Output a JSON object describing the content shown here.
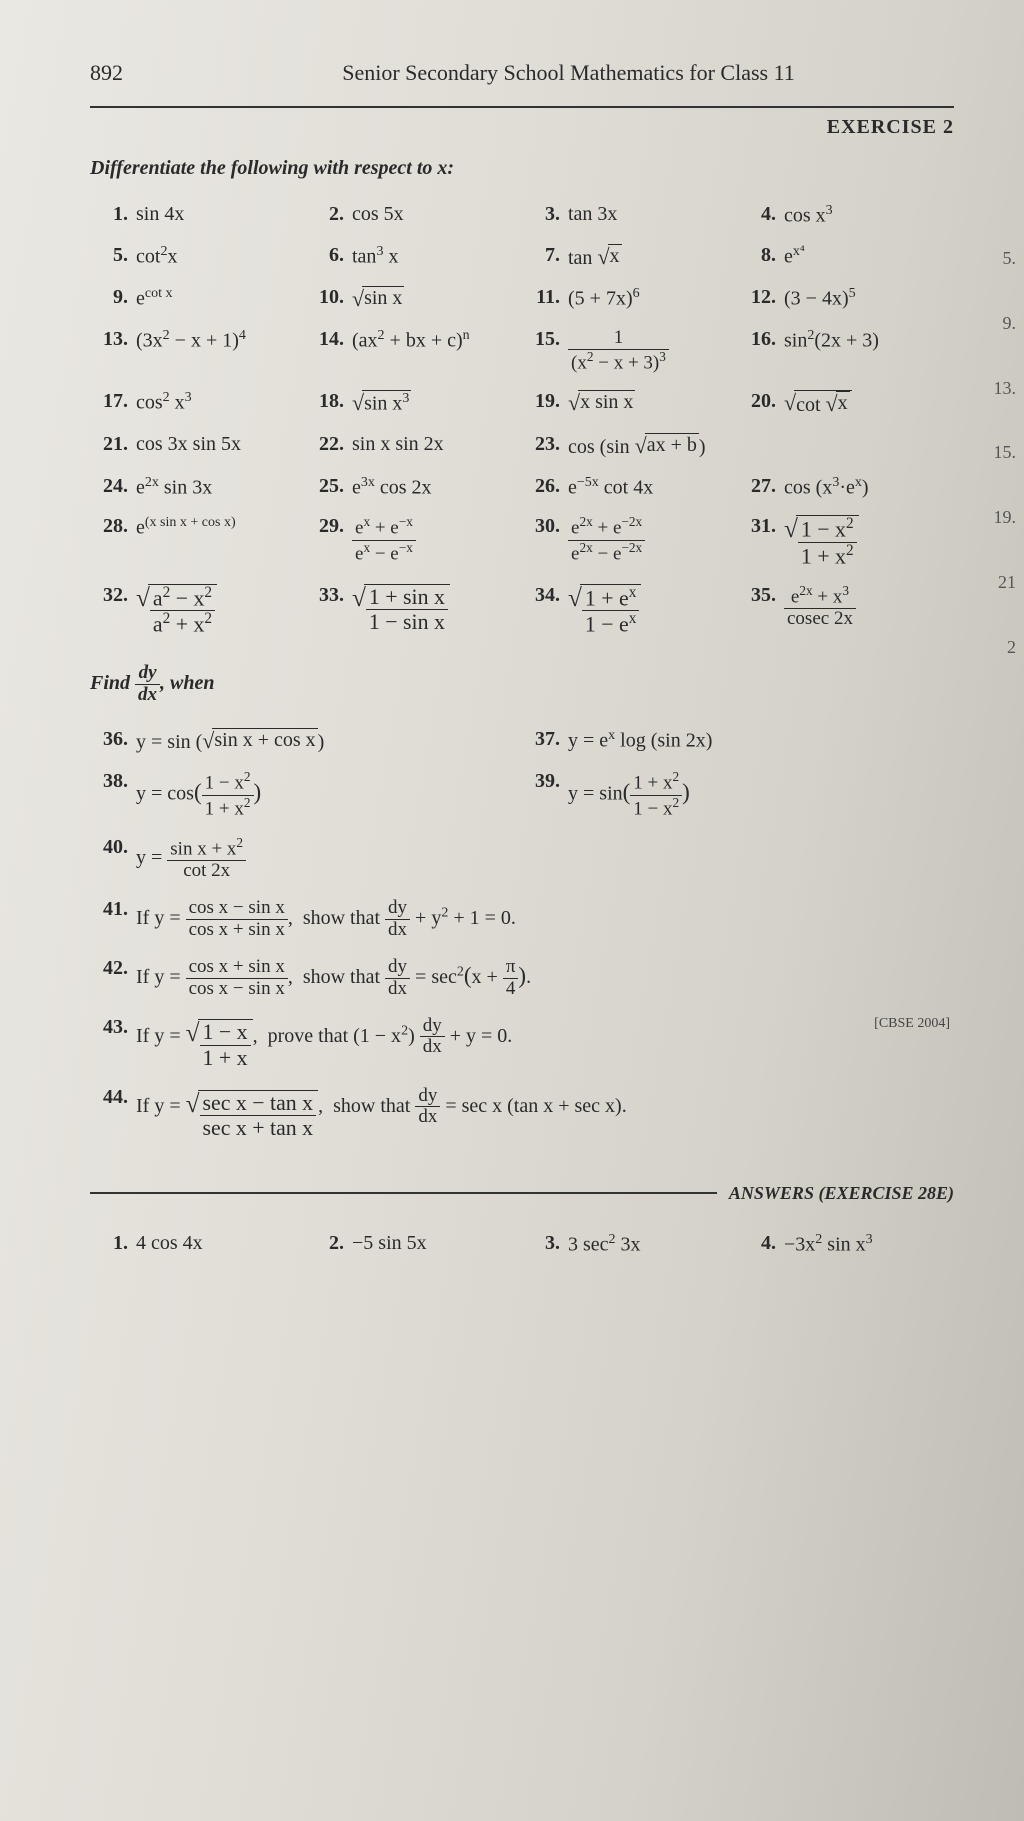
{
  "page_number": "892",
  "book_title": "Senior Secondary School Mathematics for Class 11",
  "exercise_label": "EXERCISE 2",
  "section1_title": "Differentiate the following with respect to x:",
  "section2_title": "Find <span class='frac'><span class='num'>dy</span><span class='den'>dx</span></span>, when",
  "answers_label": "ANSWERS (EXERCISE 28E)",
  "cbse_tag": "[CBSE 2004]",
  "margin_numbers": [
    "5.",
    "9.",
    "13.",
    "15.",
    "19.",
    "21",
    "2"
  ],
  "problems_row1": [
    {
      "n": "1.",
      "t": "sin 4x"
    },
    {
      "n": "2.",
      "t": "cos 5x"
    },
    {
      "n": "3.",
      "t": "tan 3x"
    },
    {
      "n": "4.",
      "t": "cos x<sup>3</sup>"
    }
  ],
  "problems_row2": [
    {
      "n": "5.",
      "t": "cot<sup>2</sup>x"
    },
    {
      "n": "6.",
      "t": "tan<sup>3</sup> x"
    },
    {
      "n": "7.",
      "t": "tan <span class='sqrt'><span>x</span></span>"
    },
    {
      "n": "8.",
      "t": "e<sup>x⁴</sup>"
    }
  ],
  "problems_row3": [
    {
      "n": "9.",
      "t": "e<sup>cot x</sup>"
    },
    {
      "n": "10.",
      "t": "<span class='sqrt'><span>sin x</span></span>"
    },
    {
      "n": "11.",
      "t": "(5 + 7x)<sup>6</sup>"
    },
    {
      "n": "12.",
      "t": "(3 − 4x)<sup>5</sup>"
    }
  ],
  "problems_row4": [
    {
      "n": "13.",
      "t": "(3x<sup>2</sup> − x + 1)<sup>4</sup>"
    },
    {
      "n": "14.",
      "t": "(ax<sup>2</sup> + bx + c)<sup>n</sup>"
    },
    {
      "n": "15.",
      "t": "<span class='frac'><span class='num'>1</span><span class='den'>(x<sup>2</sup> − x + 3)<sup>3</sup></span></span>"
    },
    {
      "n": "16.",
      "t": "sin<sup>2</sup>(2x + 3)"
    }
  ],
  "problems_row5": [
    {
      "n": "17.",
      "t": "cos<sup>2</sup> x<sup>3</sup>"
    },
    {
      "n": "18.",
      "t": "<span class='sqrt'><span>sin x<sup>3</sup></span></span>"
    },
    {
      "n": "19.",
      "t": "<span class='sqrt'><span>x sin x</span></span>"
    },
    {
      "n": "20.",
      "t": "<span class='sqrt'><span>cot <span class='sqrt'><span>x</span></span></span></span>"
    }
  ],
  "problems_row6": [
    {
      "n": "21.",
      "t": "cos 3x sin 5x"
    },
    {
      "n": "22.",
      "t": "sin x sin 2x"
    },
    {
      "n": "23.",
      "t": "cos (sin <span class='sqrt'><span>ax + b</span></span>)"
    },
    {
      "n": "",
      "t": ""
    }
  ],
  "problems_row7": [
    {
      "n": "24.",
      "t": "e<sup>2x</sup> sin 3x"
    },
    {
      "n": "25.",
      "t": "e<sup>3x</sup> cos 2x"
    },
    {
      "n": "26.",
      "t": "e<sup>−5x</sup> cot 4x"
    },
    {
      "n": "27.",
      "t": "cos (x<sup>3</sup>·e<sup>x</sup>)"
    }
  ],
  "problems_row8": [
    {
      "n": "28.",
      "t": "e<sup>(x sin x + cos x)</sup>"
    },
    {
      "n": "29.",
      "t": "<span class='frac'><span class='num'>e<sup>x</sup> + e<sup>−x</sup></span><span class='den'>e<sup>x</sup> − e<sup>−x</sup></span></span>"
    },
    {
      "n": "30.",
      "t": "<span class='frac'><span class='num'>e<sup>2x</sup> + e<sup>−2x</sup></span><span class='den'>e<sup>2x</sup> − e<sup>−2x</sup></span></span>"
    },
    {
      "n": "31.",
      "t": "<span class='sqrt big'><span><span class='frac'><span class='num'>1 − x<sup>2</sup></span><span class='den'>1 + x<sup>2</sup></span></span></span></span>"
    }
  ],
  "problems_row9": [
    {
      "n": "32.",
      "t": "<span class='sqrt big'><span><span class='frac'><span class='num'>a<sup>2</sup> − x<sup>2</sup></span><span class='den'>a<sup>2</sup> + x<sup>2</sup></span></span></span></span>"
    },
    {
      "n": "33.",
      "t": "<span class='sqrt big'><span><span class='frac'><span class='num'>1 + sin x</span><span class='den'>1 − sin x</span></span></span></span>"
    },
    {
      "n": "34.",
      "t": "<span class='sqrt big'><span><span class='frac'><span class='num'>1 + e<sup>x</sup></span><span class='den'>1 − e<sup>x</sup></span></span></span></span>"
    },
    {
      "n": "35.",
      "t": "<span class='frac'><span class='num'>e<sup>2x</sup> + x<sup>3</sup></span><span class='den'>cosec 2x</span></span>"
    }
  ],
  "problems_section2": [
    {
      "n": "36.",
      "t": "y = sin (<span class='sqrt'><span>sin x + cos x</span></span>)",
      "w": "col2"
    },
    {
      "n": "37.",
      "t": "y = e<sup>x</sup> log (sin 2x)",
      "w": "col2"
    },
    {
      "n": "38.",
      "t": "y = cos<span class='big'>(</span><span class='frac'><span class='num'>1 − x<sup>2</sup></span><span class='den'>1 + x<sup>2</sup></span></span><span class='big'>)</span>",
      "w": "col2"
    },
    {
      "n": "39.",
      "t": "y = sin<span class='big'>(</span><span class='frac'><span class='num'>1 + x<sup>2</sup></span><span class='den'>1 − x<sup>2</sup></span></span><span class='big'>)</span>",
      "w": "col2"
    },
    {
      "n": "40.",
      "t": "y = <span class='frac'><span class='num'>sin x + x<sup>2</sup></span><span class='den'>cot 2x</span></span>",
      "w": "col1"
    },
    {
      "n": "41.",
      "t": "If y = <span class='frac'><span class='num'>cos x − sin x</span><span class='den'>cos x + sin x</span></span>,&nbsp;&nbsp;show that <span class='frac'><span class='num'>dy</span><span class='den'>dx</span></span> + y<sup>2</sup> + 1 = 0.",
      "w": "col1"
    },
    {
      "n": "42.",
      "t": "If y = <span class='frac'><span class='num'>cos x + sin x</span><span class='den'>cos x − sin x</span></span>,&nbsp;&nbsp;show that <span class='frac'><span class='num'>dy</span><span class='den'>dx</span></span> = sec<sup>2</sup><span class='big'>(</span>x + <span class='frac'><span class='num'>π</span><span class='den'>4</span></span><span class='big'>)</span>.",
      "w": "col1"
    },
    {
      "n": "43.",
      "t": "If y = <span class='sqrt big'><span><span class='frac'><span class='num'>1 − x</span><span class='den'>1 + x</span></span></span></span>,&nbsp;&nbsp;prove that (1 − x<sup>2</sup>) <span class='frac'><span class='num'>dy</span><span class='den'>dx</span></span> + y = 0.",
      "w": "col1",
      "cbse": true
    },
    {
      "n": "44.",
      "t": "If y = <span class='sqrt big'><span><span class='frac'><span class='num'>sec x − tan x</span><span class='den'>sec x + tan x</span></span></span></span>,&nbsp;&nbsp;show that <span class='frac'><span class='num'>dy</span><span class='den'>dx</span></span> = sec x (tan x + sec x).",
      "w": "col1"
    }
  ],
  "answers": [
    {
      "n": "1.",
      "t": "4 cos 4x"
    },
    {
      "n": "2.",
      "t": "−5 sin 5x"
    },
    {
      "n": "3.",
      "t": "3 sec<sup>2</sup> 3x"
    },
    {
      "n": "4.",
      "t": "−3x<sup>2</sup> sin x<sup>3</sup>"
    }
  ]
}
